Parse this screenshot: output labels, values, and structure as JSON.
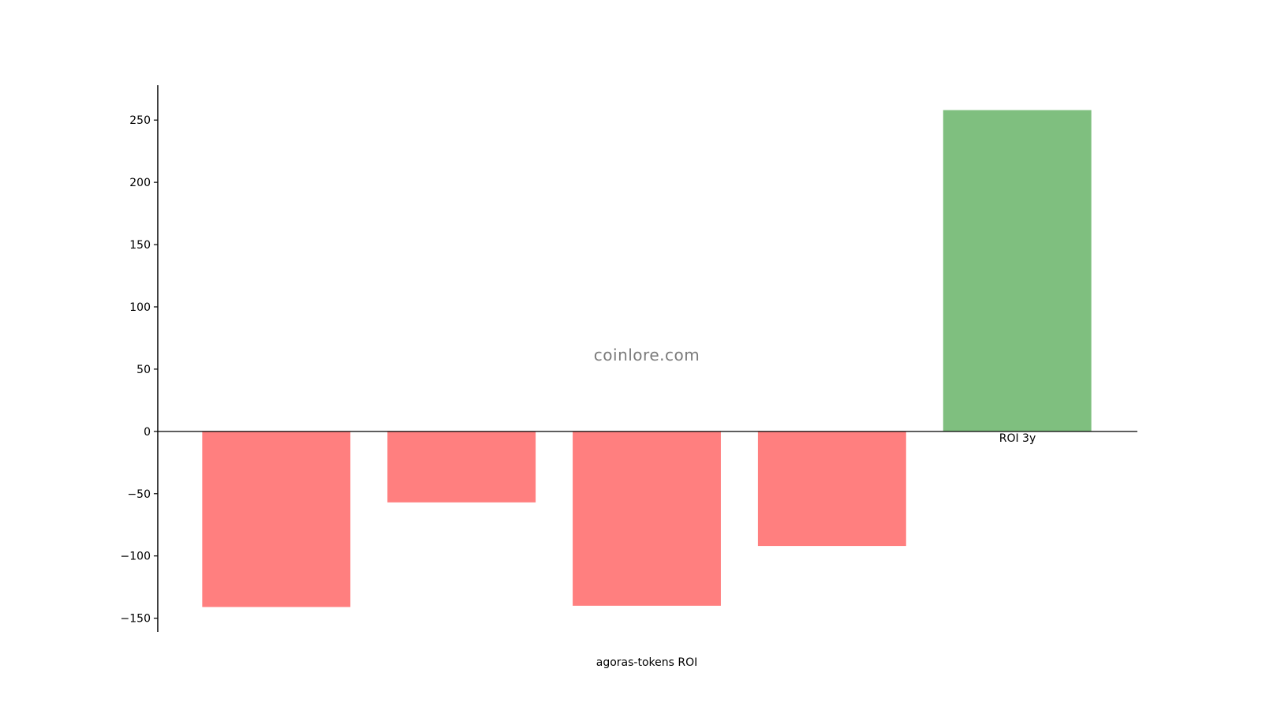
{
  "watermark": {
    "text": "coinlore.com",
    "color": "#7a7a7a"
  },
  "chart_data": {
    "type": "bar",
    "title": "",
    "xlabel": "agoras-tokens ROI",
    "ylabel": "",
    "categories": [
      "",
      "",
      "",
      "",
      "ROI 3y"
    ],
    "values": [
      -141,
      -57,
      -140,
      -92,
      258
    ],
    "bar_colors": [
      "#ff7f7f",
      "#ff7f7f",
      "#ff7f7f",
      "#ff7f7f",
      "#7fbf7f"
    ],
    "negative_color": "#ff7f7f",
    "positive_color": "#7fbf7f",
    "axis_color": "#000000",
    "yticks": [
      -150,
      -100,
      -50,
      0,
      50,
      100,
      150,
      200,
      250
    ],
    "ytick_labels": [
      "−150",
      "−100",
      "−50",
      "0",
      "50",
      "100",
      "150",
      "200",
      "250"
    ],
    "ylim": [
      -161,
      278
    ],
    "xlim": [
      -0.64,
      4.64
    ],
    "bar_width": 0.8,
    "grid": false,
    "legend": "none"
  }
}
